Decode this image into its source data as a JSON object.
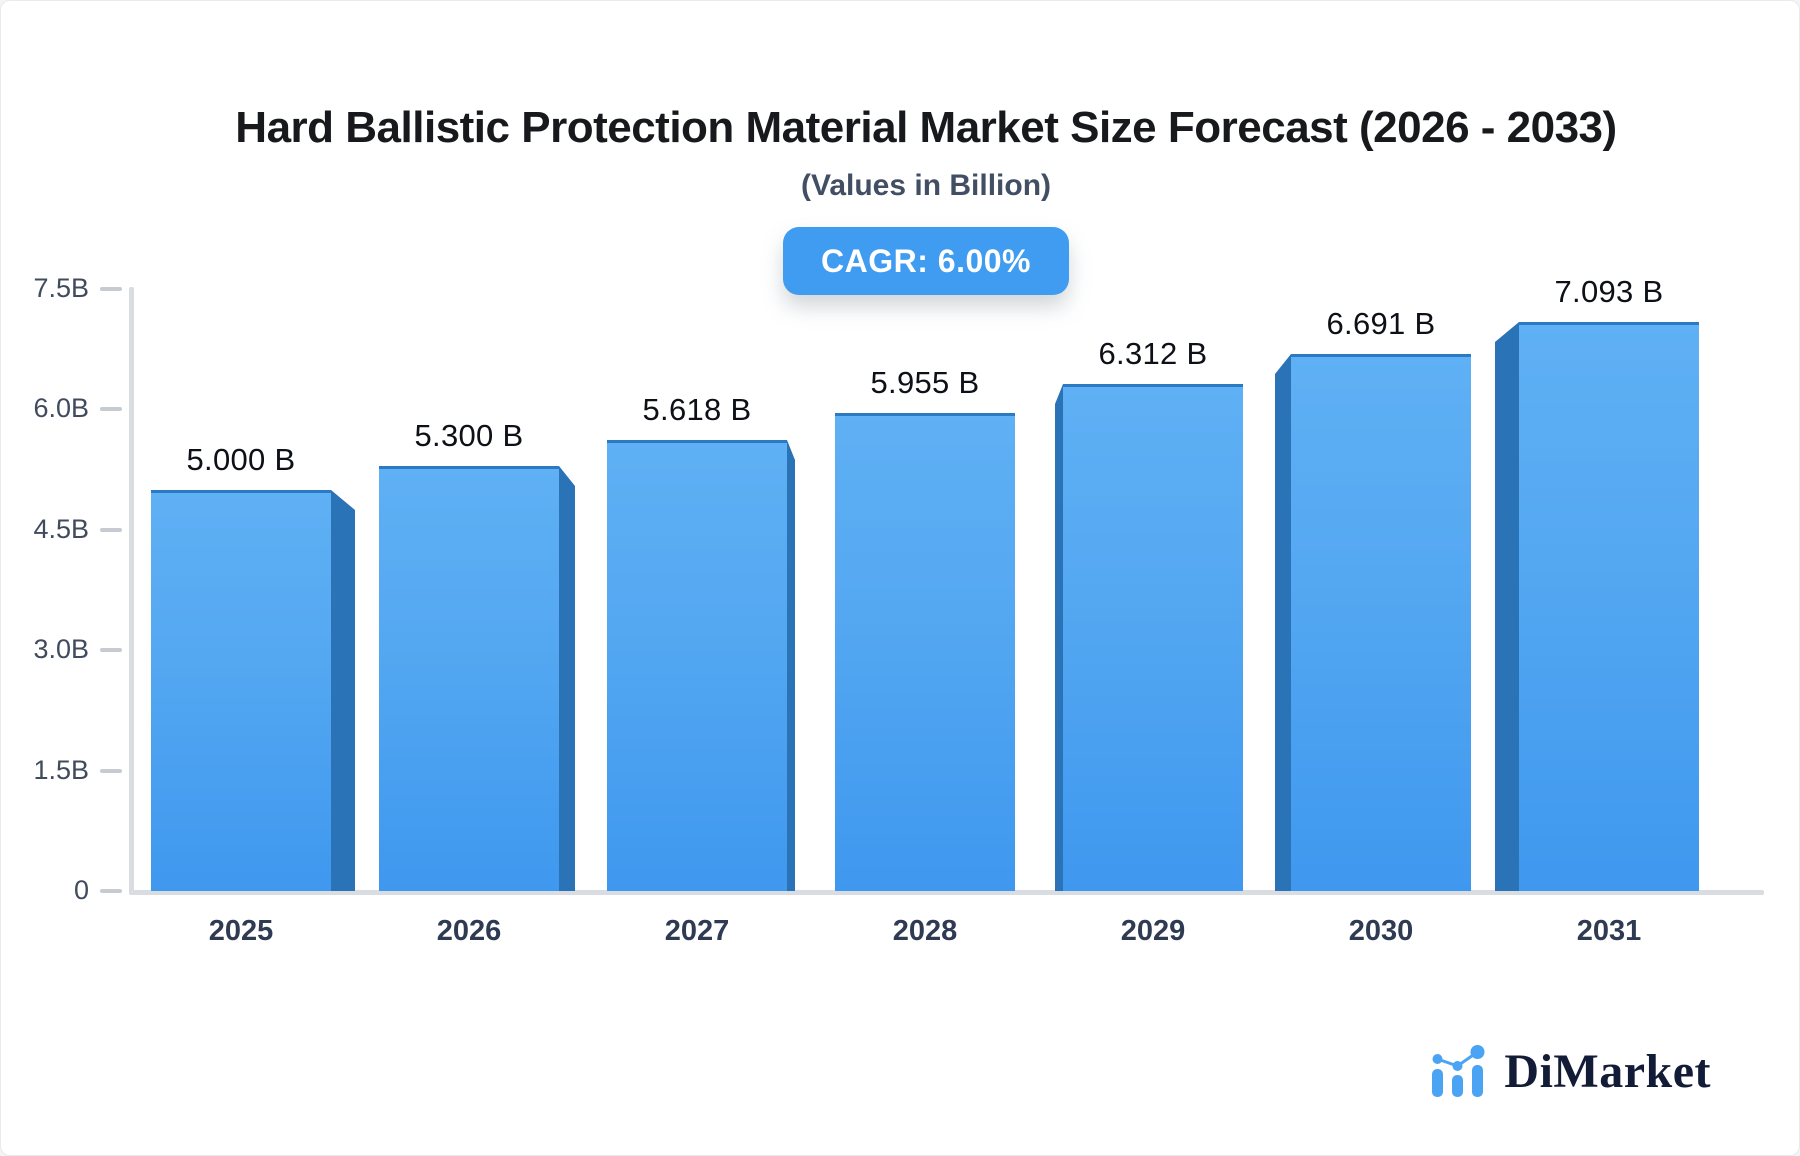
{
  "title": "Hard Ballistic Protection Material Market Size Forecast (2026 - 2033)",
  "subtitle": "(Values in Billion)",
  "badge": {
    "label": "CAGR: 6.00%"
  },
  "chart_data": {
    "type": "bar",
    "title": "Hard Ballistic Protection Material Market Size Forecast (2026 - 2033)",
    "subtitle": "(Values in Billion)",
    "categories": [
      "2025",
      "2026",
      "2027",
      "2028",
      "2029",
      "2030",
      "2031"
    ],
    "values": [
      5.0,
      5.3,
      5.618,
      5.955,
      6.312,
      6.691,
      7.093
    ],
    "value_labels": [
      "5.000 B",
      "5.300 B",
      "5.618 B",
      "5.955 B",
      "6.312 B",
      "6.691 B",
      "7.093 B"
    ],
    "cagr": "CAGR: 6.00%",
    "xlabel": "",
    "ylabel": "",
    "ylim": [
      0,
      7.5
    ],
    "yticks": [
      0,
      1.5,
      3.0,
      4.5,
      6.0,
      7.5
    ],
    "ytick_labels": [
      "0",
      "1.5B",
      "3.0B",
      "4.5B",
      "6.0B",
      "7.5B"
    ],
    "grid": false,
    "legend": "none",
    "style": "3d-bars",
    "colors": {
      "bar_top": "#5fb0f4",
      "bar_bottom": "#3f98ef",
      "bar_side": "#2b73b7",
      "badge_bg": "#3f9cf0",
      "axis": "#d9dce0",
      "tick_text": "#414b5e",
      "year_text": "#2e3b52",
      "value_text": "#0d1017"
    }
  },
  "logo": {
    "text": "DiMarket",
    "icon": "bar-chart-logo-icon",
    "color": "#131c36",
    "icon_color": "#4aa3f3"
  }
}
